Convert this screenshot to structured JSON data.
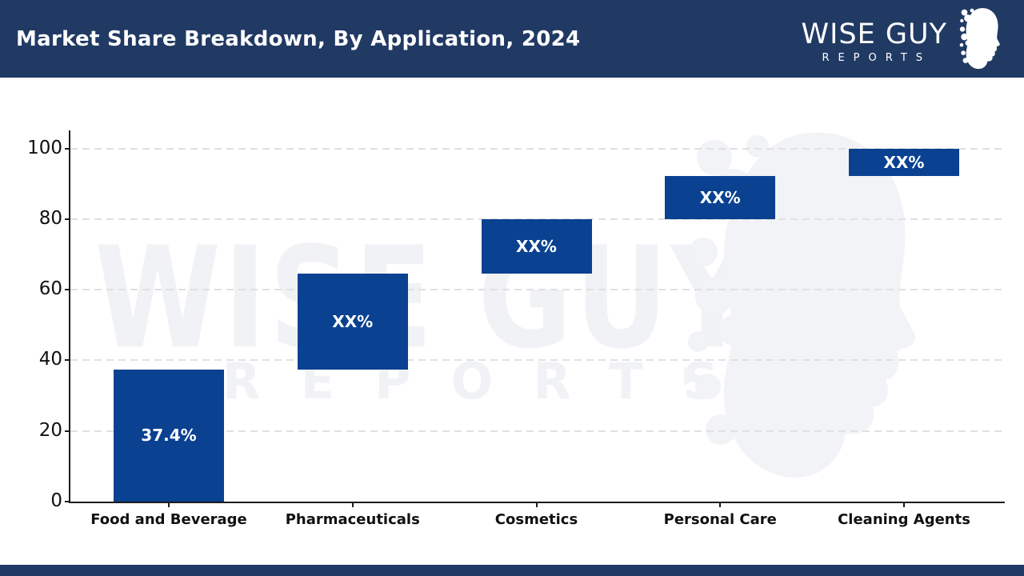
{
  "header": {
    "title": "Market Share Breakdown, By Application, 2024",
    "logo": {
      "line1": "WISE GUY",
      "line2": "REPORTS"
    }
  },
  "watermark": {
    "line1": "WISE GUY",
    "line2": "REPORTS"
  },
  "footer": {},
  "colors": {
    "header_navy": "#213a64",
    "bar_blue": "#0a4191",
    "axis": "#1c1c1c",
    "gridline": "#e0e0e0",
    "watermark_gray": "#f1f2f5",
    "label_white": "#ffffff",
    "text_black": "#111111"
  },
  "chart_data": {
    "type": "bar",
    "subtype": "waterfall-floating-bars",
    "title": "Market Share Breakdown, By Application, 2024",
    "categories": [
      "Food and Beverage",
      "Pharmaceuticals",
      "Cosmetics",
      "Personal Care",
      "Cleaning Agents"
    ],
    "bars": [
      {
        "category": "Food and Beverage",
        "start": 0,
        "end": 37.4,
        "label": "37.4%"
      },
      {
        "category": "Pharmaceuticals",
        "start": 37.4,
        "end": 64.6,
        "label": "XX%"
      },
      {
        "category": "Cosmetics",
        "start": 64.6,
        "end": 79.9,
        "label": "XX%"
      },
      {
        "category": "Personal Care",
        "start": 79.9,
        "end": 92.1,
        "label": "XX%"
      },
      {
        "category": "Cleaning Agents",
        "start": 92.1,
        "end": 100,
        "label": "XX%"
      }
    ],
    "xlabel": "",
    "ylabel": "",
    "ylim": [
      0,
      100
    ],
    "yticks": [
      0,
      20,
      40,
      60,
      80,
      100
    ],
    "grid": "horizontal-dashed",
    "legend": "none",
    "bar_color": "#0a4191"
  }
}
